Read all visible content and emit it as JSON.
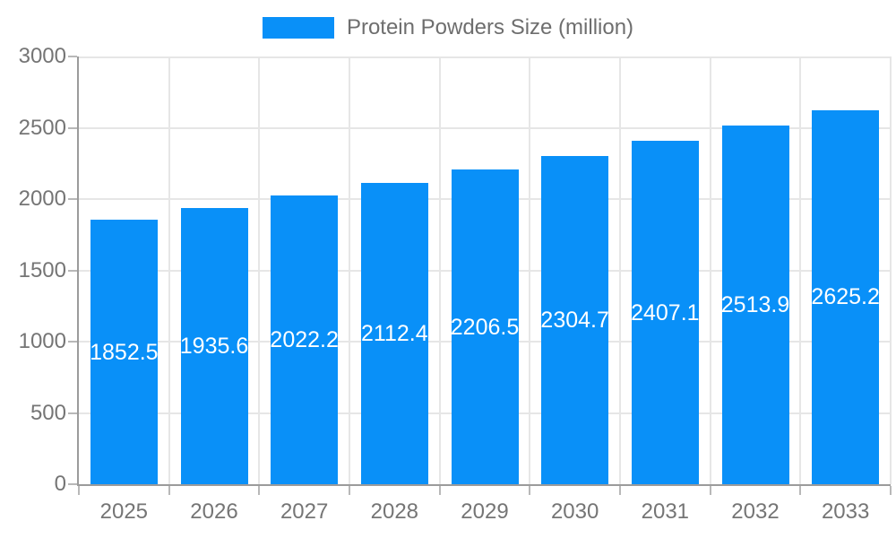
{
  "chart_data": {
    "type": "bar",
    "title": "Protein Powders Size (million)",
    "categories": [
      "2025",
      "2026",
      "2027",
      "2028",
      "2029",
      "2030",
      "2031",
      "2032",
      "2033"
    ],
    "series": [
      {
        "name": "Protein Powders Size (million)",
        "values": [
          1852.5,
          1935.6,
          2022.2,
          2112.4,
          2206.5,
          2304.7,
          2407.1,
          2513.9,
          2625.2
        ]
      }
    ],
    "xlabel": "",
    "ylabel": "",
    "ylim": [
      0,
      3000
    ],
    "yticks": [
      0,
      500,
      1000,
      1500,
      2000,
      2500,
      3000
    ],
    "grid": true,
    "legend_position": "top-center",
    "value_label_position": "inside-middle",
    "colors": {
      "bar": "#0990f8",
      "value_label": "#ffffff",
      "axis_line": "#9b9b9b",
      "gridline": "#e6e6e6",
      "tick": "#b8b8b8",
      "tick_label": "#757575",
      "legend_text": "#6e6e6e",
      "background": "#ffffff"
    }
  }
}
